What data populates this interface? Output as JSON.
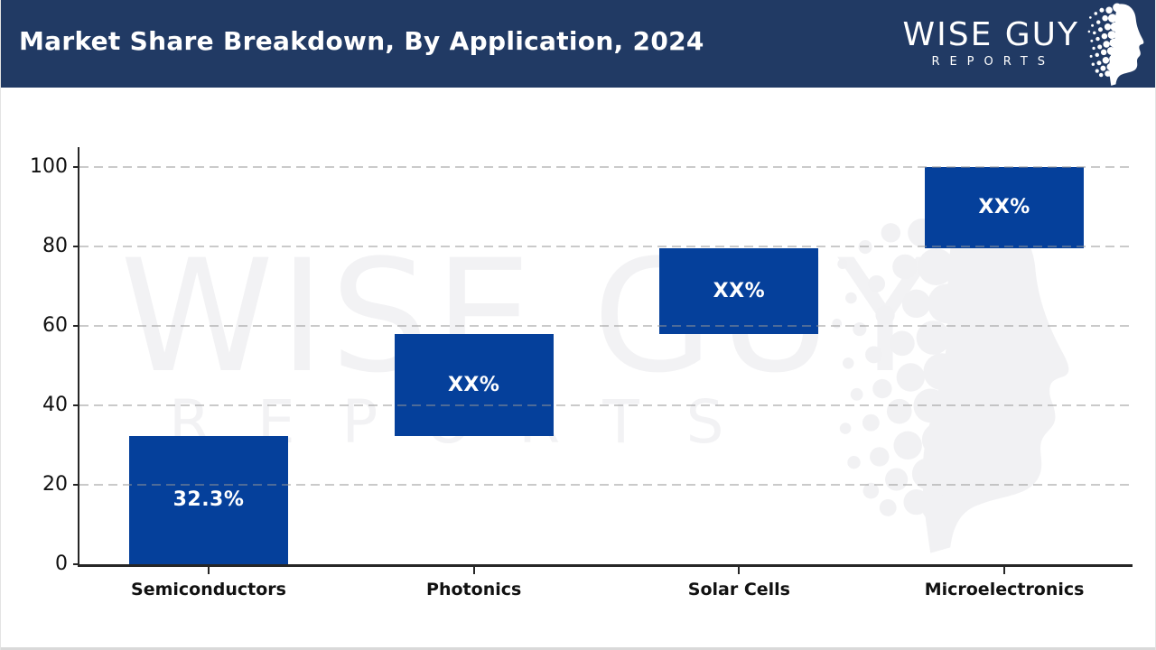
{
  "header": {
    "title": "Market Share Breakdown, By Application, 2024",
    "bg_color": "#213a64",
    "logo": {
      "wordmark": "WISE GUY",
      "subtext": "REPORTS"
    }
  },
  "watermark": {
    "line1": "WISE GUY",
    "line2": "REPORTS"
  },
  "chart_data": {
    "type": "bar",
    "subtype": "floating-waterfall",
    "title": "Market Share Breakdown, By Application, 2024",
    "categories": [
      "Semiconductors",
      "Photonics",
      "Solar Cells",
      "Microelectronics"
    ],
    "segments": [
      {
        "category": "Semiconductors",
        "start": 0,
        "end": 32.3,
        "label": "32.3%"
      },
      {
        "category": "Photonics",
        "start": 32.3,
        "end": 58,
        "label": "XX%"
      },
      {
        "category": "Solar Cells",
        "start": 58,
        "end": 79.5,
        "label": "XX%"
      },
      {
        "category": "Microelectronics",
        "start": 79.5,
        "end": 100,
        "label": "XX%"
      }
    ],
    "y_ticks": [
      0,
      20,
      40,
      60,
      80,
      100
    ],
    "ylim": [
      0,
      105
    ],
    "xlabel": "",
    "ylabel": "",
    "bar_color": "#05409b",
    "bar_label_color": "#ffffff",
    "axis_color": "#262626",
    "grid": "horizontal-dashed",
    "legend_position": "none"
  }
}
